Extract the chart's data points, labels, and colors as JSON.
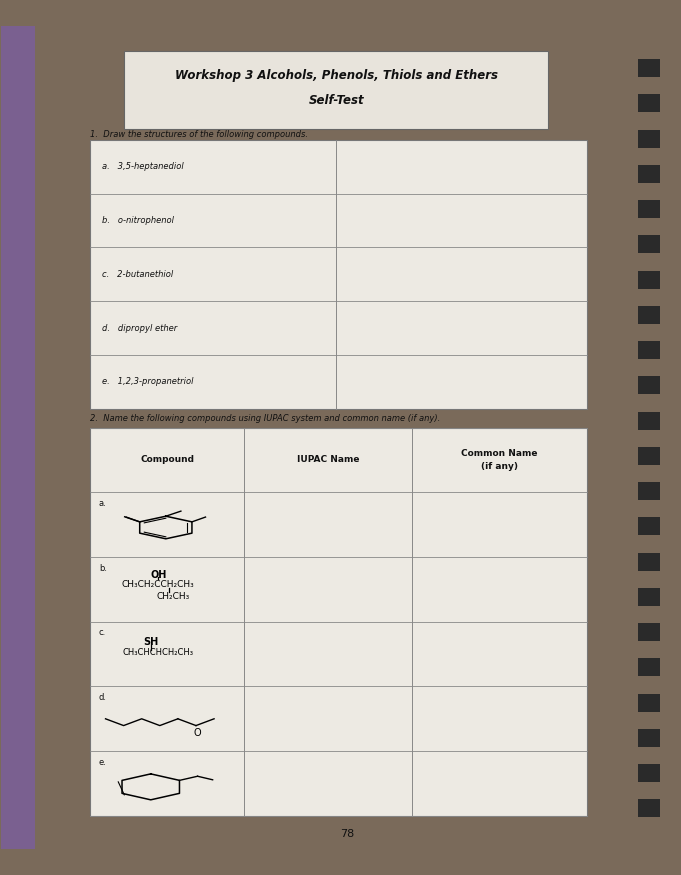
{
  "bg_color": "#7a6a5a",
  "paper_color": "#e8e4dc",
  "cell_color": "#edeae3",
  "title_line1": "Workshop 3 Alcohols, Phenols, Thiols and Ethers",
  "title_line2": "Self-Test",
  "section1_header": "1.  Draw the structures of the following compounds.",
  "section1_rows": [
    "a.   3,5-heptanediol",
    "b.   o-nitrophenol",
    "c.   2-butanethiol",
    "d.   dipropyl ether",
    "e.   1,2,3-propanetriol"
  ],
  "section2_header": "2.  Name the following compounds using IUPAC system and common name (if any).",
  "col_headers": [
    "Compound",
    "IUPAC Name",
    "Common Name\n(if any)"
  ],
  "section2_rows": [
    "a.",
    "b.",
    "c.",
    "d.",
    "e."
  ],
  "page_number": "78",
  "font_color": "#111111",
  "line_color": "#888888"
}
